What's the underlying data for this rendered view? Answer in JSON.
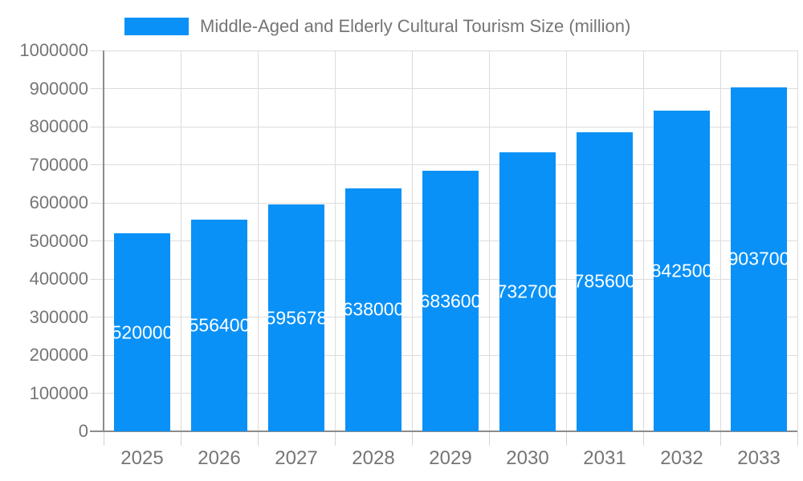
{
  "chart_data": {
    "type": "bar",
    "title": "Middle-Aged and Elderly Cultural Tourism Size (million)",
    "legend": {
      "position": "top",
      "entries": [
        {
          "label": "Middle-Aged and Elderly Cultural Tourism Size (million)",
          "color": "#0991f7"
        }
      ]
    },
    "categories": [
      "2025",
      "2026",
      "2027",
      "2028",
      "2029",
      "2030",
      "2031",
      "2032",
      "2033"
    ],
    "series": [
      {
        "name": "Middle-Aged and Elderly Cultural Tourism Size (million)",
        "values": [
          520000,
          556400,
          595678,
          638000,
          683600,
          732700,
          785600,
          842500,
          903700
        ]
      }
    ],
    "value_labels": [
      "520000",
      "556400",
      "595678",
      "638000",
      "683600",
      "732700",
      "785600",
      "842500",
      "903700"
    ],
    "xlabel": "",
    "ylabel": "",
    "ylim": [
      0,
      1000000
    ],
    "yticks": [
      0,
      100000,
      200000,
      300000,
      400000,
      500000,
      600000,
      700000,
      800000,
      900000,
      1000000
    ],
    "ytick_labels": [
      "0",
      "100000",
      "200000",
      "300000",
      "400000",
      "500000",
      "600000",
      "700000",
      "800000",
      "900000",
      "1000000"
    ],
    "grid": true,
    "colors": {
      "bar": "#0991f7",
      "value_label_text": "#ffffff",
      "axis_text": "#757575",
      "grid_line": "#dcdcdc",
      "axis_line": "#8c8c8c",
      "background": "#ffffff"
    }
  }
}
